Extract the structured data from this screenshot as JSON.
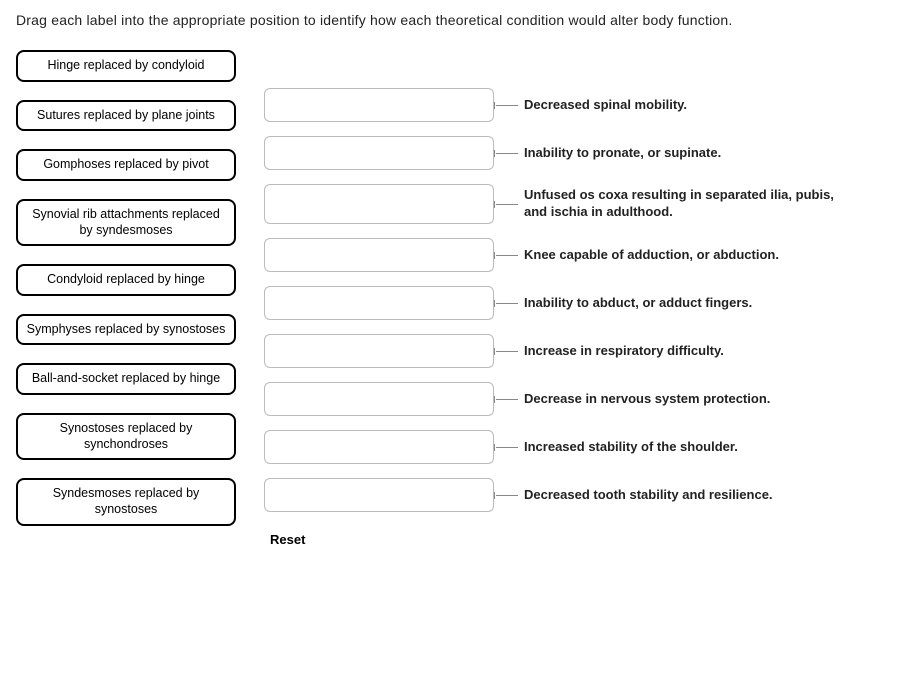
{
  "instruction": "Drag each label into the appropriate position to identify how each theoretical condition would alter body function.",
  "labels": [
    "Hinge replaced by condyloid",
    "Sutures replaced by plane joints",
    "Gomphoses replaced by pivot",
    "Synovial rib attachments replaced by syndesmoses",
    "Condyloid replaced by hinge",
    "Symphyses replaced by synostoses",
    "Ball-and-socket replaced by hinge",
    "Synostoses replaced by synchondroses",
    "Syndesmoses replaced by synostoses"
  ],
  "targets": [
    "Decreased spinal mobility.",
    "Inability to pronate, or supinate.",
    "Unfused os coxa resulting in separated ilia, pubis, and ischia in adulthood.",
    "Knee capable of adduction, or abduction.",
    "Inability to abduct, or adduct fingers.",
    "Increase in respiratory difficulty.",
    "Decrease in nervous system protection.",
    "Increased stability of the shoulder.",
    "Decreased tooth stability and resilience."
  ],
  "reset_label": "Reset"
}
